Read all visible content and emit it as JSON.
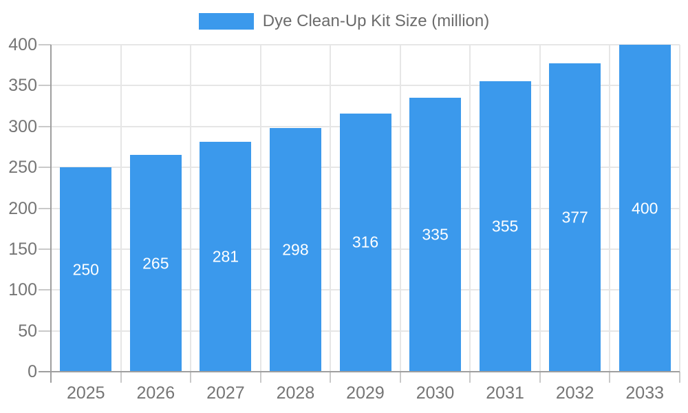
{
  "chart_data": {
    "type": "bar",
    "title": "Dye Clean-Up Kit Size (million)",
    "categories": [
      "2025",
      "2026",
      "2027",
      "2028",
      "2029",
      "2030",
      "2031",
      "2032",
      "2033"
    ],
    "values": [
      250,
      265,
      281,
      298,
      316,
      335,
      355,
      377,
      400
    ],
    "xlabel": "",
    "ylabel": "",
    "ylim": [
      0,
      400
    ],
    "yticks": [
      0,
      50,
      100,
      150,
      200,
      250,
      300,
      350,
      400
    ],
    "grid": true,
    "legend_position": "top-center",
    "bar_labels_inside": true
  },
  "legend": {
    "label": "Dye Clean-Up Kit Size (million)"
  },
  "colors": {
    "bar": "#3B99EC",
    "grid": "#e6e6e6",
    "axis": "#9e9e9e",
    "tick": "#c9c9c9",
    "axis_text": "#757575",
    "legend_text": "#6b6b6b",
    "bar_label_text": "#ffffff",
    "background": "#ffffff"
  }
}
